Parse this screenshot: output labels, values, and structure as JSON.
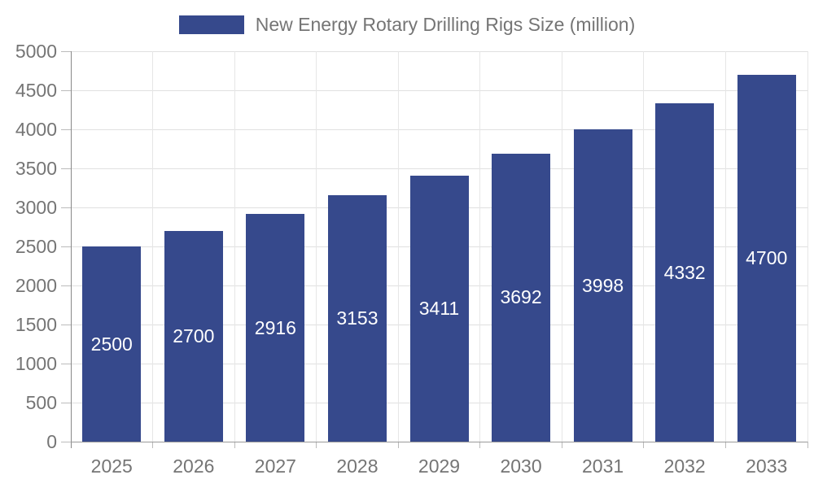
{
  "legend": {
    "label": "New Energy Rotary Drilling Rigs Size (million)"
  },
  "colors": {
    "bar": "#36498C",
    "legend_text": "#757575",
    "tick_label": "#757575",
    "value_label": "#ffffff",
    "y_axis_line": "#888888",
    "x_axis_line": "#999999",
    "grid_h": "#e0e0e0",
    "grid_v": "#e6e6e6",
    "tick_mark": "#bbbbbb",
    "background": "#ffffff"
  },
  "chart_data": {
    "type": "bar",
    "title": "New Energy Rotary Drilling Rigs Size (million)",
    "categories": [
      "2025",
      "2026",
      "2027",
      "2028",
      "2029",
      "2030",
      "2031",
      "2032",
      "2033"
    ],
    "series": [
      {
        "name": "New Energy Rotary Drilling Rigs Size (million)",
        "values": [
          2500,
          2700,
          2916,
          3153,
          3411,
          3692,
          3998,
          4332,
          4700
        ]
      }
    ],
    "xlabel": "",
    "ylabel": "",
    "ylim": [
      0,
      5000
    ],
    "ytick_step": 500,
    "grid": true,
    "legend_position": "top-center",
    "value_labels": "inside-center"
  }
}
